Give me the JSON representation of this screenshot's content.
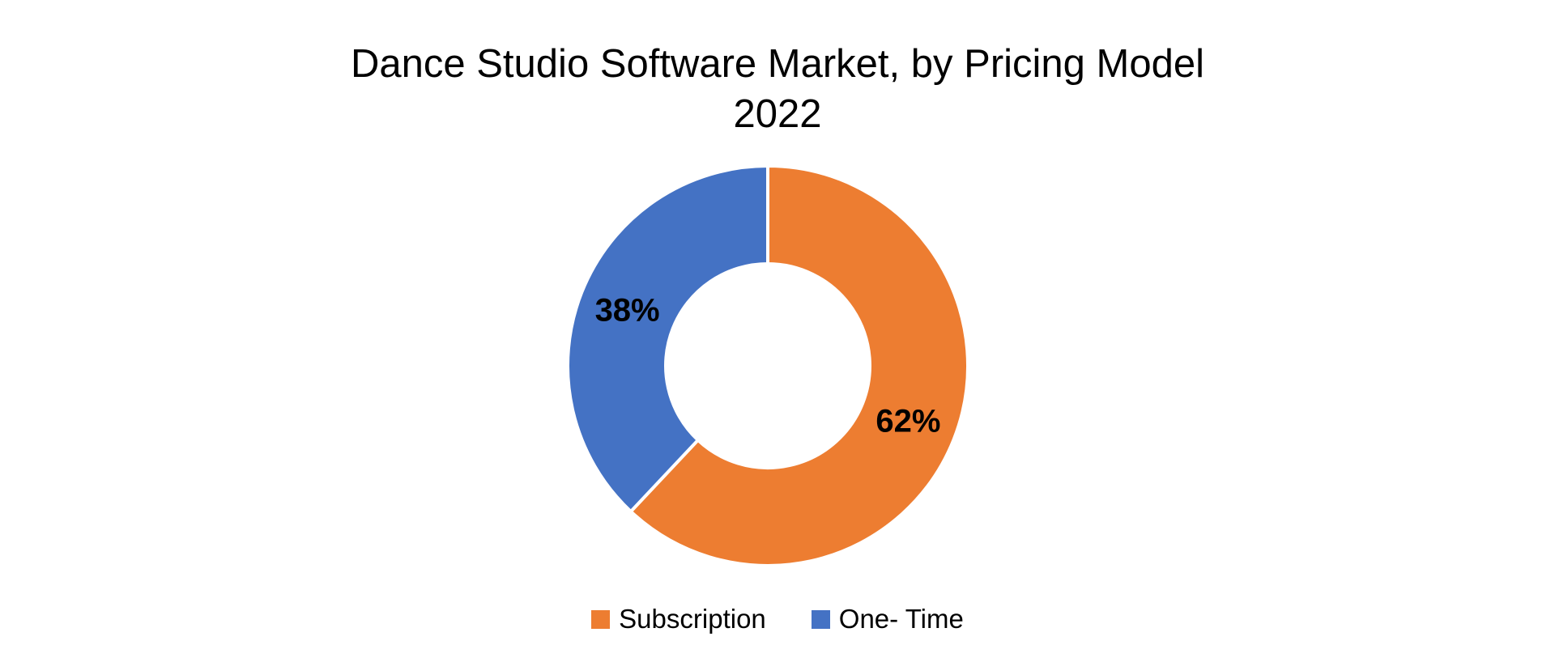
{
  "title": {
    "line1": "Dance Studio Software Market, by Pricing Model",
    "line2": "2022"
  },
  "chart_data": {
    "type": "pie",
    "subtype": "donut",
    "title": "Dance Studio Software Market, by Pricing Model 2022",
    "categories": [
      "Subscription",
      "One- Time"
    ],
    "values": [
      62,
      38
    ],
    "value_unit": "percent",
    "data_labels": [
      "62%",
      "38%"
    ],
    "colors": [
      "#ED7D31",
      "#4472C4"
    ],
    "slice_border_color": "#FFFFFF",
    "data_label_color": "#000000",
    "start_angle_deg": 0,
    "direction": "clockwise",
    "hole_ratio": 0.51,
    "legend_position": "bottom",
    "background": "#FFFFFF"
  }
}
